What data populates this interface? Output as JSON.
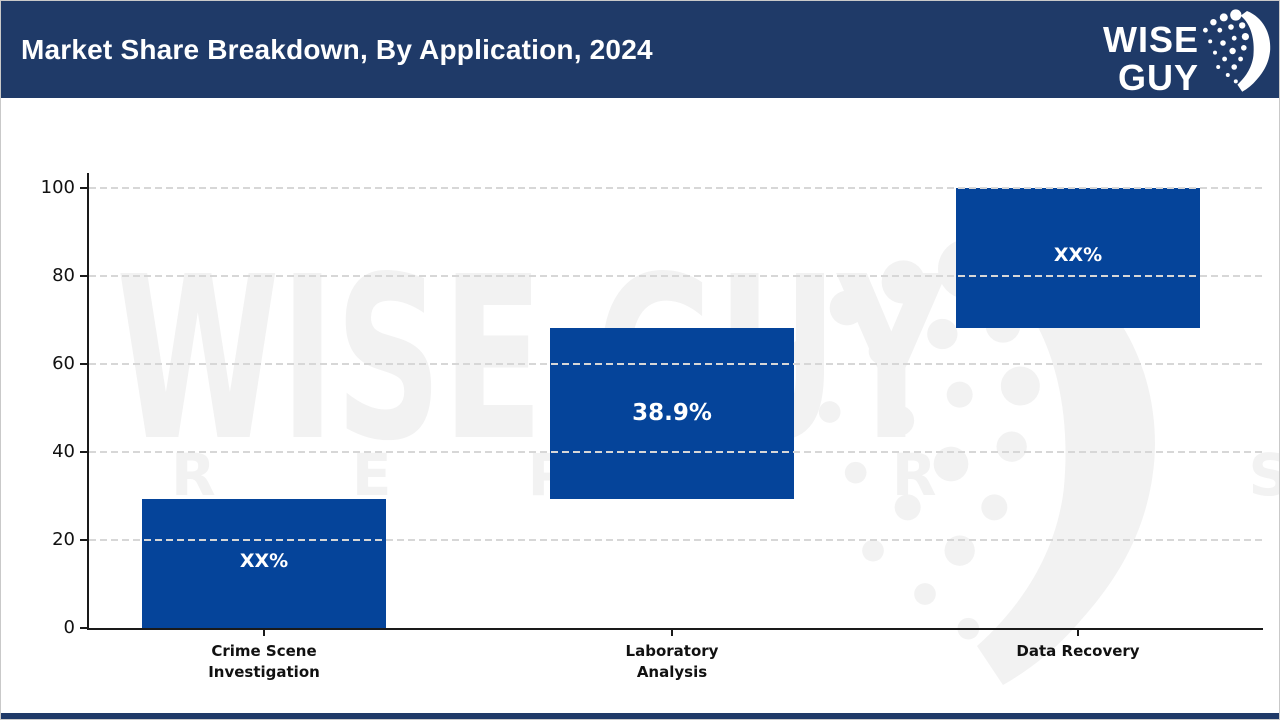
{
  "header": {
    "title": "Market Share Breakdown, By Application, 2024",
    "bg_color": "#1f3a68",
    "logo": {
      "line1": "WISE GUY",
      "line2": "R E P O R T S"
    }
  },
  "watermark": {
    "line1": "WISE GUY",
    "line2": "R E P O R T S"
  },
  "footer": {
    "bg_color": "#1f3a68"
  },
  "chart_data": {
    "type": "bar",
    "subtype": "waterfall (floating stacked percentage bars)",
    "title": "Market Share Breakdown, By Application, 2024",
    "categories": [
      "Crime Scene Investigation",
      "Laboratory Analysis",
      "Data Recovery"
    ],
    "categories_lines": [
      [
        "Crime Scene",
        "Investigation"
      ],
      [
        "Laboratory",
        "Analysis"
      ],
      [
        "Data Recovery"
      ]
    ],
    "segments": [
      {
        "category": "Crime Scene Investigation",
        "start": 0,
        "end": 29.3,
        "label": "XX%"
      },
      {
        "category": "Laboratory Analysis",
        "start": 29.3,
        "end": 68.2,
        "label": "38.9%"
      },
      {
        "category": "Data Recovery",
        "start": 68.2,
        "end": 100,
        "label": "XX%"
      }
    ],
    "y_ticks": [
      0,
      20,
      40,
      60,
      80,
      100
    ],
    "ylim": [
      0,
      100
    ],
    "xlabel": "",
    "ylabel": "",
    "grid": "horizontal dashed gridlines, drawn over bars",
    "legend": null,
    "bar_color": "#05449a",
    "label_color": "#ffffff",
    "axis_color": "#1a1a1a"
  }
}
